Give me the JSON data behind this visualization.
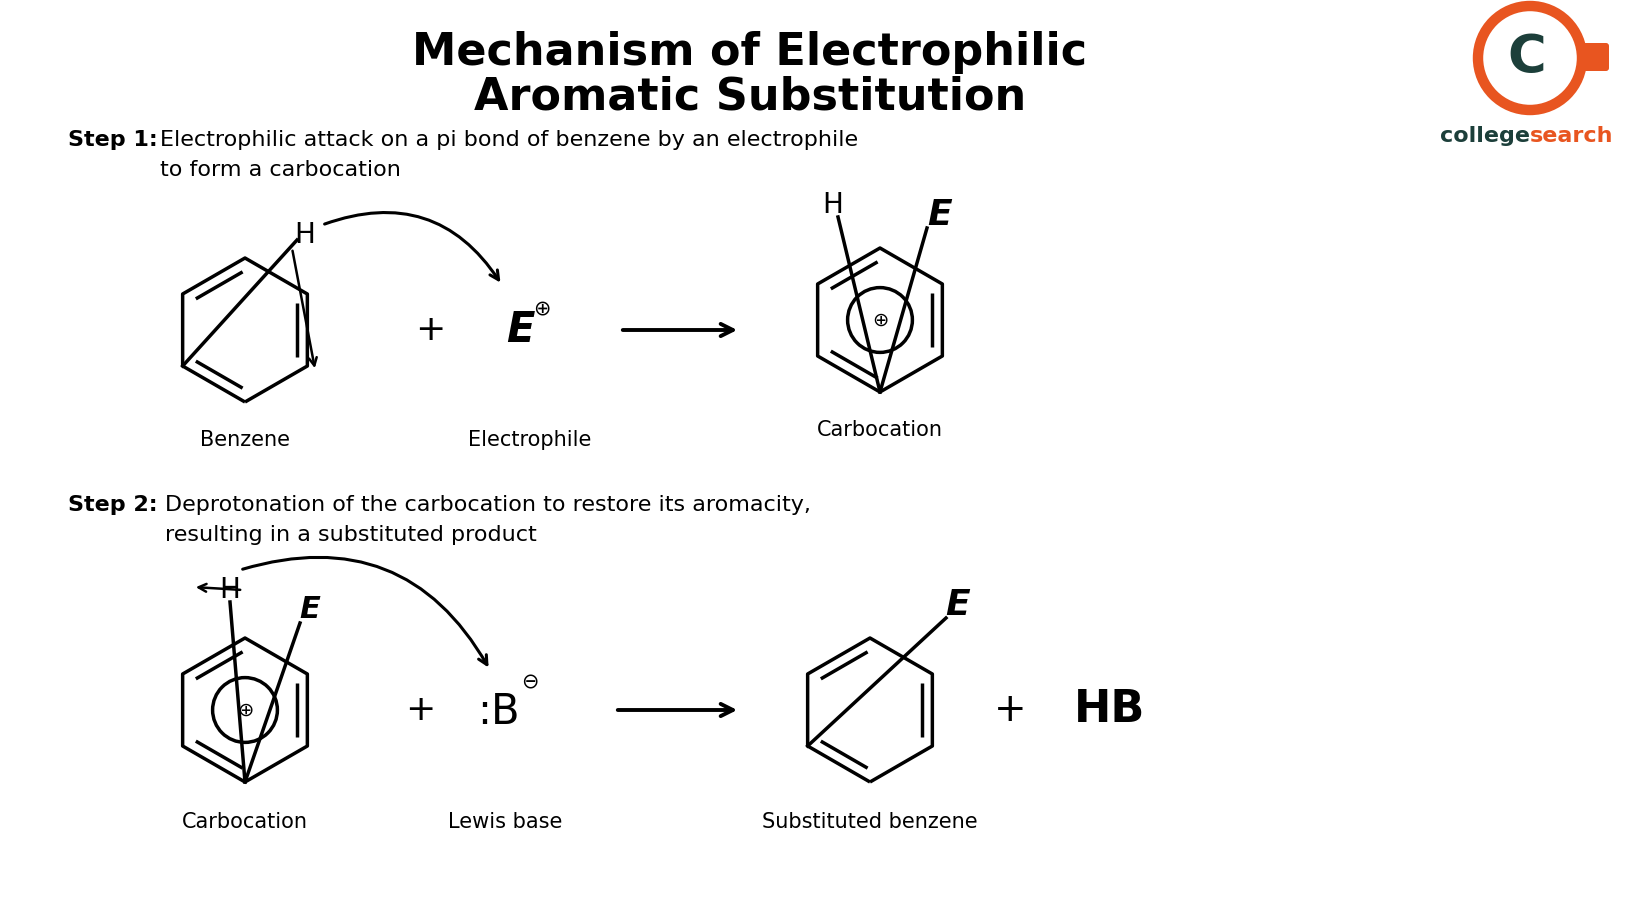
{
  "title_line1": "Mechanism of Electrophilic",
  "title_line2": "Aromatic Substitution",
  "title_fontsize": 32,
  "bg_color": "#ffffff",
  "text_color": "#000000",
  "step1_bold": "Step 1:",
  "step1_text1": "Electrophilic attack on a pi bond of benzene by an electrophile",
  "step1_text2": "to form a carbocation",
  "step2_bold": "Step 2:",
  "step2_text1": "Deprotonation of the carbocation to restore its aromacity,",
  "step2_text2": "resulting in a substituted product",
  "label_benzene": "Benzene",
  "label_electrophile": "Electrophile",
  "label_carbocation": "Carbocation",
  "label_lewis_base": "Lewis base",
  "label_sub_benzene": "Substituted benzene",
  "logo_college_color": "#1c3f3a",
  "logo_search_color": "#e85520",
  "logo_ring_color": "#e85520",
  "step_fontsize": 16,
  "label_fontsize": 15
}
